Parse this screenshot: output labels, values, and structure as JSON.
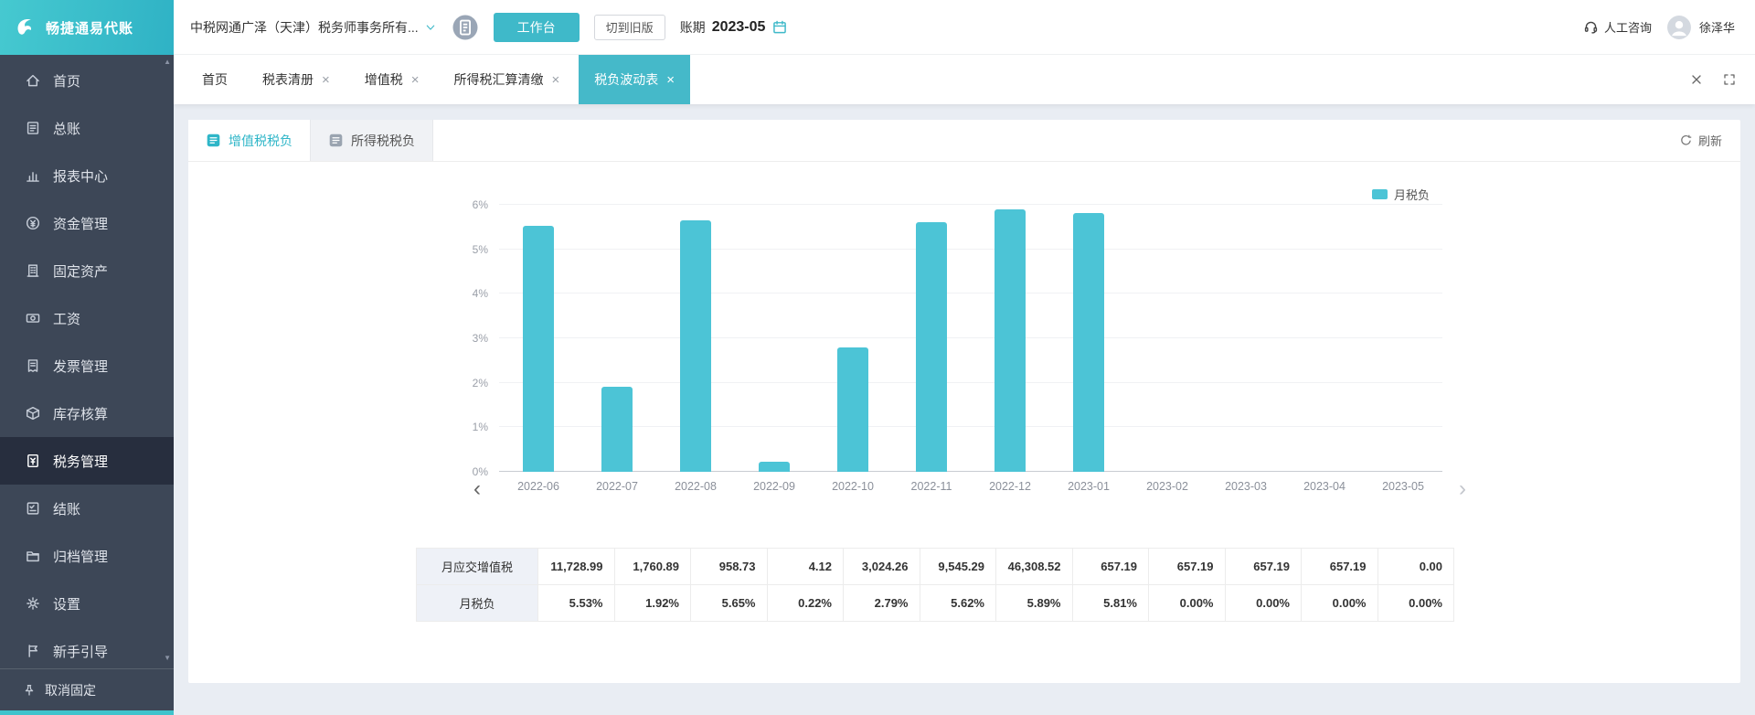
{
  "header": {
    "brand": "畅捷通易代账",
    "company": "中税网通广泽（天津）税务师事务所有...",
    "workbench": "工作台",
    "switch_old": "切到旧版",
    "period_label": "账期",
    "period_value": "2023-05",
    "support": "人工咨询",
    "username": "徐泽华"
  },
  "sidebar": {
    "items": [
      {
        "id": "home",
        "icon": "home",
        "label": "首页"
      },
      {
        "id": "ledger",
        "icon": "ledger",
        "label": "总账"
      },
      {
        "id": "reports",
        "icon": "reports",
        "label": "报表中心"
      },
      {
        "id": "funds",
        "icon": "funds",
        "label": "资金管理"
      },
      {
        "id": "assets",
        "icon": "assets",
        "label": "固定资产"
      },
      {
        "id": "salary",
        "icon": "salary",
        "label": "工资"
      },
      {
        "id": "invoice",
        "icon": "invoice",
        "label": "发票管理"
      },
      {
        "id": "inventory",
        "icon": "inventory",
        "label": "库存核算"
      },
      {
        "id": "tax",
        "icon": "tax",
        "label": "税务管理",
        "active": true
      },
      {
        "id": "settle",
        "icon": "settle",
        "label": "结账"
      },
      {
        "id": "archive",
        "icon": "archive",
        "label": "归档管理"
      },
      {
        "id": "settings",
        "icon": "settings",
        "label": "设置"
      },
      {
        "id": "guide",
        "icon": "guide",
        "label": "新手引导"
      }
    ],
    "pin_label": "取消固定"
  },
  "tabs": [
    {
      "id": "home",
      "label": "首页",
      "closable": false
    },
    {
      "id": "tax-register",
      "label": "税表清册",
      "closable": true
    },
    {
      "id": "vat",
      "label": "增值税",
      "closable": true
    },
    {
      "id": "income-tax-settlement",
      "label": "所得税汇算清缴",
      "closable": true
    },
    {
      "id": "tax-fluctuation",
      "label": "税负波动表",
      "closable": true,
      "active": true
    }
  ],
  "content": {
    "tabs": [
      {
        "id": "vat-burden",
        "label": "增值税税负",
        "active": true
      },
      {
        "id": "income-tax-burden",
        "label": "所得税税负"
      }
    ],
    "refresh": "刷新"
  },
  "chart_data": {
    "type": "bar",
    "title": "",
    "categories": [
      "2022-06",
      "2022-07",
      "2022-08",
      "2022-09",
      "2022-10",
      "2022-11",
      "2022-12",
      "2023-01",
      "2023-02",
      "2023-03",
      "2023-04",
      "2023-05"
    ],
    "series": [
      {
        "name": "月税负",
        "values": [
          5.53,
          1.92,
          5.65,
          0.22,
          2.79,
          5.62,
          5.89,
          5.81,
          0,
          0,
          0,
          0
        ]
      }
    ],
    "unit": "%",
    "ylim": [
      0,
      6
    ],
    "yticks": [
      0,
      1,
      2,
      3,
      4,
      5,
      6
    ],
    "legend_position": "top-right",
    "grid": true,
    "bar_color": "#4cc4d6"
  },
  "table": {
    "rows": [
      {
        "header": "月应交增值税",
        "values": [
          "11,728.99",
          "1,760.89",
          "958.73",
          "4.12",
          "3,024.26",
          "9,545.29",
          "46,308.52",
          "657.19",
          "657.19",
          "657.19",
          "657.19",
          "0.00"
        ]
      },
      {
        "header": "月税负",
        "values": [
          "5.53%",
          "1.92%",
          "5.65%",
          "0.22%",
          "2.79%",
          "5.62%",
          "5.89%",
          "5.81%",
          "0.00%",
          "0.00%",
          "0.00%",
          "0.00%"
        ]
      }
    ]
  },
  "colors": {
    "accent": "#3fb9c9",
    "bar": "#4cc4d6",
    "sidebar_bg": "#3d4757",
    "sidebar_active": "#272e3e"
  }
}
